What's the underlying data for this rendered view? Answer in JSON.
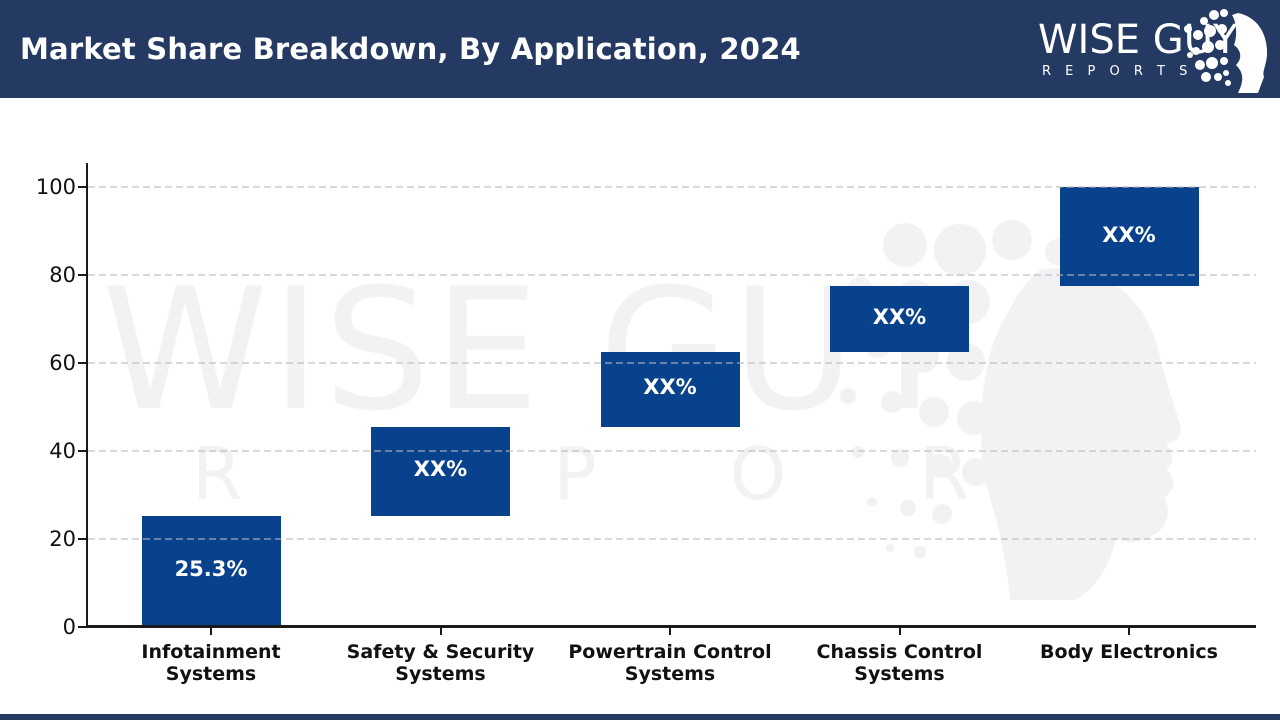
{
  "header": {
    "title": "Market Share Breakdown, By Application, 2024",
    "logo": {
      "line1": "WISE GUY",
      "line2": "R E P O R T S",
      "face_icon": "dotted-head-profile"
    }
  },
  "watermark": {
    "line1": "WISE GUY",
    "line2": "R E P O R T S",
    "face_icon": "dotted-head-profile"
  },
  "chart_data": {
    "type": "bar",
    "variant": "waterfall",
    "title": "Market Share Breakdown, By Application, 2024",
    "categories": [
      "Infotainment Systems",
      "Safety & Security Systems",
      "Powertrain Control Systems",
      "Chassis Control Systems",
      "Body Electronics"
    ],
    "category_lines": [
      [
        "Infotainment",
        "Systems"
      ],
      [
        "Safety & Security",
        "Systems"
      ],
      [
        "Powertrain Control",
        "Systems"
      ],
      [
        "Chassis Control",
        "Systems"
      ],
      [
        "Body Electronics"
      ]
    ],
    "segments": [
      {
        "category": "Infotainment Systems",
        "start": 0,
        "end": 25.3,
        "label": "25.3%"
      },
      {
        "category": "Safety & Security Systems",
        "start": 25.3,
        "end": 45.5,
        "label": "XX%"
      },
      {
        "category": "Powertrain Control Systems",
        "start": 45.5,
        "end": 62.5,
        "label": "XX%"
      },
      {
        "category": "Chassis Control Systems",
        "start": 62.5,
        "end": 77.5,
        "label": "XX%"
      },
      {
        "category": "Body Electronics",
        "start": 77.5,
        "end": 100,
        "label": "XX%"
      }
    ],
    "yticks": [
      0,
      20,
      40,
      60,
      80,
      100
    ],
    "ylim": [
      0,
      105
    ],
    "xlabel": "",
    "ylabel": "",
    "grid": "horizontal-dashed",
    "legend": "none"
  },
  "colors": {
    "header_bg": "#253a63",
    "footer_bg": "#253a63",
    "bar": "#08418c",
    "grid": "#d9d9d9",
    "axis": "#1a1a1a",
    "bar_label": "#ffffff",
    "tick_label": "#111111",
    "watermark": "#f2f2f5"
  }
}
